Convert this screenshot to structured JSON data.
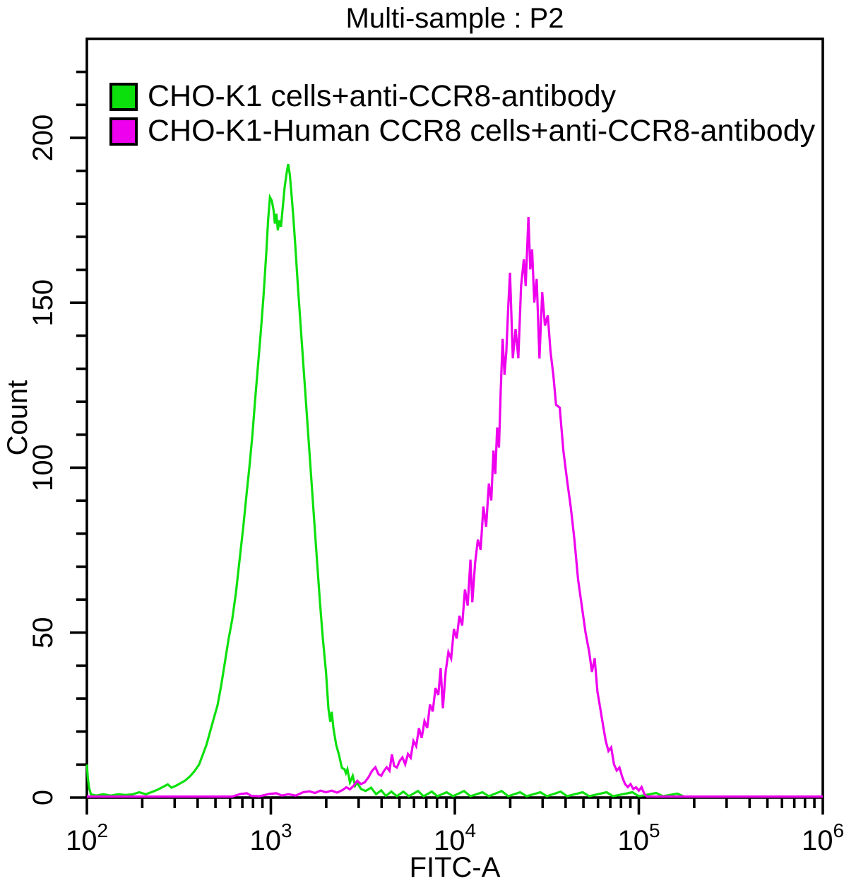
{
  "title": "Multi-sample : P2",
  "legend": {
    "items": [
      {
        "label": "CHO-K1 cells+anti-CCR8-antibody",
        "color": "#0ce00c"
      },
      {
        "label": "CHO-K1-Human CCR8 cells+anti-CCR8-antibody",
        "color": "#ee00ee"
      }
    ]
  },
  "colors": {
    "axis": "#000000",
    "background": "#ffffff",
    "green_series": "#0ce00c",
    "magenta_series": "#ee00ee"
  },
  "chart_data": {
    "type": "line",
    "title": "Multi-sample : P2",
    "xlabel": "FITC-A",
    "ylabel": "Count",
    "x_scale": "log10",
    "xlim_log10": [
      2,
      6
    ],
    "ylim": [
      0,
      230
    ],
    "x_major_tick_exponents": [
      2,
      3,
      4,
      5,
      6
    ],
    "x_tick_base_label": "10",
    "y_major_ticks": [
      0,
      50,
      100,
      150,
      200
    ],
    "y_tick_labels": [
      "0",
      "50",
      "100",
      "150",
      "200"
    ],
    "y_minor_tick_step": 10,
    "grid": false,
    "legend_position": "top-left",
    "series": [
      {
        "name": "CHO-K1 cells+anti-CCR8-antibody",
        "color": "#0ce00c",
        "peak": {
          "x_log10": 3.094,
          "count": 192
        },
        "points_log10x_count": [
          [
            2.0,
            10
          ],
          [
            2.005,
            6
          ],
          [
            2.012,
            3
          ],
          [
            2.022,
            1
          ],
          [
            2.05,
            0.6
          ],
          [
            2.09,
            1
          ],
          [
            2.13,
            0.6
          ],
          [
            2.17,
            1
          ],
          [
            2.21,
            0.8
          ],
          [
            2.25,
            1
          ],
          [
            2.285,
            1.6
          ],
          [
            2.32,
            1
          ],
          [
            2.35,
            1.6
          ],
          [
            2.385,
            2.4
          ],
          [
            2.42,
            3.4
          ],
          [
            2.44,
            4
          ],
          [
            2.46,
            3
          ],
          [
            2.485,
            3.6
          ],
          [
            2.51,
            4.4
          ],
          [
            2.535,
            5.2
          ],
          [
            2.56,
            6.4
          ],
          [
            2.585,
            8
          ],
          [
            2.61,
            10
          ],
          [
            2.63,
            13
          ],
          [
            2.65,
            16
          ],
          [
            2.67,
            20
          ],
          [
            2.69,
            24
          ],
          [
            2.71,
            28
          ],
          [
            2.73,
            34
          ],
          [
            2.75,
            41
          ],
          [
            2.77,
            48
          ],
          [
            2.79,
            54
          ],
          [
            2.81,
            62
          ],
          [
            2.83,
            72
          ],
          [
            2.85,
            82
          ],
          [
            2.87,
            93
          ],
          [
            2.885,
            101
          ],
          [
            2.9,
            110
          ],
          [
            2.915,
            121
          ],
          [
            2.93,
            131
          ],
          [
            2.945,
            141
          ],
          [
            2.96,
            152
          ],
          [
            2.975,
            165
          ],
          [
            2.985,
            175
          ],
          [
            2.995,
            182
          ],
          [
            3.005,
            181
          ],
          [
            3.015,
            178
          ],
          [
            3.022,
            174
          ],
          [
            3.03,
            177
          ],
          [
            3.038,
            172
          ],
          [
            3.046,
            175
          ],
          [
            3.055,
            173
          ],
          [
            3.065,
            179
          ],
          [
            3.075,
            185
          ],
          [
            3.085,
            189
          ],
          [
            3.094,
            192
          ],
          [
            3.103,
            189
          ],
          [
            3.112,
            183
          ],
          [
            3.122,
            176
          ],
          [
            3.132,
            168
          ],
          [
            3.147,
            155
          ],
          [
            3.162,
            143
          ],
          [
            3.177,
            131
          ],
          [
            3.192,
            119
          ],
          [
            3.207,
            107
          ],
          [
            3.222,
            95
          ],
          [
            3.237,
            83
          ],
          [
            3.252,
            71
          ],
          [
            3.267,
            59
          ],
          [
            3.283,
            48
          ],
          [
            3.3,
            38
          ],
          [
            3.313,
            27
          ],
          [
            3.323,
            23
          ],
          [
            3.331,
            26
          ],
          [
            3.34,
            21
          ],
          [
            3.355,
            16
          ],
          [
            3.37,
            13
          ],
          [
            3.386,
            9
          ],
          [
            3.4,
            8.6
          ],
          [
            3.408,
            7.4
          ],
          [
            3.416,
            8.6
          ],
          [
            3.43,
            4.6
          ],
          [
            3.445,
            6.6
          ],
          [
            3.458,
            3.6
          ],
          [
            3.468,
            4.6
          ],
          [
            3.49,
            2.6
          ],
          [
            3.515,
            2
          ],
          [
            3.545,
            3
          ],
          [
            3.572,
            1
          ],
          [
            3.6,
            2.2
          ],
          [
            3.625,
            0.5
          ],
          [
            3.655,
            1.8
          ],
          [
            3.685,
            0.4
          ],
          [
            3.72,
            1.8
          ],
          [
            3.75,
            0.4
          ],
          [
            3.8,
            2
          ],
          [
            3.83,
            0.4
          ],
          [
            3.875,
            1.8
          ],
          [
            3.905,
            0.4
          ],
          [
            3.955,
            1.6
          ],
          [
            3.99,
            0.4
          ],
          [
            4.05,
            2
          ],
          [
            4.085,
            0.4
          ],
          [
            4.15,
            1.6
          ],
          [
            4.185,
            0.4
          ],
          [
            4.255,
            2
          ],
          [
            4.29,
            0.4
          ],
          [
            4.355,
            1.6
          ],
          [
            4.39,
            0.4
          ],
          [
            4.465,
            1.6
          ],
          [
            4.5,
            0.4
          ],
          [
            4.575,
            1.8
          ],
          [
            4.61,
            0.4
          ],
          [
            4.695,
            1.6
          ],
          [
            4.73,
            0.4
          ],
          [
            4.825,
            1.6
          ],
          [
            4.86,
            0.4
          ],
          [
            4.965,
            1.6
          ],
          [
            5.0,
            0.4
          ],
          [
            5.095,
            1.4
          ],
          [
            5.13,
            0.4
          ],
          [
            5.21,
            1.2
          ],
          [
            5.245,
            0.3
          ],
          [
            5.35,
            0.3
          ],
          [
            5.5,
            0.3
          ],
          [
            5.7,
            0.3
          ],
          [
            6.0,
            0.3
          ]
        ]
      },
      {
        "name": "CHO-K1-Human CCR8 cells+anti-CCR8-antibody",
        "color": "#ee00ee",
        "peak": {
          "x_log10": 4.4,
          "count": 176
        },
        "points_log10x_count": [
          [
            2.0,
            0.3
          ],
          [
            2.55,
            0.3
          ],
          [
            2.79,
            0.3
          ],
          [
            2.835,
            1.1
          ],
          [
            2.87,
            1.3
          ],
          [
            2.895,
            0.5
          ],
          [
            2.94,
            0.4
          ],
          [
            2.99,
            1.1
          ],
          [
            3.03,
            1.3
          ],
          [
            3.06,
            0.6
          ],
          [
            3.095,
            1
          ],
          [
            3.135,
            0.6
          ],
          [
            3.175,
            1.6
          ],
          [
            3.21,
            1.9
          ],
          [
            3.24,
            1.4
          ],
          [
            3.27,
            2.1
          ],
          [
            3.3,
            1.6
          ],
          [
            3.33,
            2.1
          ],
          [
            3.36,
            1.5
          ],
          [
            3.39,
            2.3
          ],
          [
            3.41,
            3.1
          ],
          [
            3.43,
            2.5
          ],
          [
            3.45,
            3.6
          ],
          [
            3.47,
            5.1
          ],
          [
            3.49,
            4.1
          ],
          [
            3.51,
            4.6
          ],
          [
            3.53,
            6.1
          ],
          [
            3.55,
            8.1
          ],
          [
            3.568,
            9.2
          ],
          [
            3.585,
            7.1
          ],
          [
            3.6,
            6.6
          ],
          [
            3.615,
            8.1
          ],
          [
            3.63,
            9.2
          ],
          [
            3.645,
            8.1
          ],
          [
            3.658,
            13.1
          ],
          [
            3.67,
            9.6
          ],
          [
            3.685,
            9.1
          ],
          [
            3.7,
            11.1
          ],
          [
            3.715,
            12.2
          ],
          [
            3.73,
            10.1
          ],
          [
            3.745,
            13.2
          ],
          [
            3.76,
            12.1
          ],
          [
            3.775,
            17.2
          ],
          [
            3.79,
            15.6
          ],
          [
            3.805,
            21
          ],
          [
            3.82,
            18.1
          ],
          [
            3.835,
            23.2
          ],
          [
            3.85,
            21.1
          ],
          [
            3.865,
            28.2
          ],
          [
            3.88,
            26.1
          ],
          [
            3.895,
            33.2
          ],
          [
            3.91,
            31.1
          ],
          [
            3.923,
            39.2
          ],
          [
            3.935,
            27.1
          ],
          [
            3.95,
            38.2
          ],
          [
            3.965,
            44.1
          ],
          [
            3.98,
            42.2
          ],
          [
            3.995,
            51.1
          ],
          [
            4.01,
            48.2
          ],
          [
            4.025,
            55.1
          ],
          [
            4.04,
            52.2
          ],
          [
            4.055,
            63.1
          ],
          [
            4.07,
            58.2
          ],
          [
            4.085,
            72.1
          ],
          [
            4.095,
            59.2
          ],
          [
            4.11,
            71.1
          ],
          [
            4.125,
            78.2
          ],
          [
            4.14,
            75.1
          ],
          [
            4.155,
            88.2
          ],
          [
            4.17,
            82.1
          ],
          [
            4.185,
            95.2
          ],
          [
            4.198,
            90.1
          ],
          [
            4.21,
            105.2
          ],
          [
            4.22,
            98.1
          ],
          [
            4.23,
            112.2
          ],
          [
            4.24,
            106.1
          ],
          [
            4.25,
            124.2
          ],
          [
            4.26,
            139.1
          ],
          [
            4.27,
            128.2
          ],
          [
            4.28,
            135.1
          ],
          [
            4.29,
            148.2
          ],
          [
            4.3,
            159.1
          ],
          [
            4.315,
            133.2
          ],
          [
            4.33,
            142.1
          ],
          [
            4.345,
            133.2
          ],
          [
            4.36,
            155.1
          ],
          [
            4.375,
            163.2
          ],
          [
            4.385,
            155.1
          ],
          [
            4.4,
            176
          ],
          [
            4.41,
            160.1
          ],
          [
            4.42,
            166.2
          ],
          [
            4.432,
            150.1
          ],
          [
            4.445,
            157.2
          ],
          [
            4.46,
            133.1
          ],
          [
            4.475,
            153.2
          ],
          [
            4.49,
            143.1
          ],
          [
            4.505,
            146.2
          ],
          [
            4.52,
            135.1
          ],
          [
            4.535,
            128.2
          ],
          [
            4.55,
            119.1
          ],
          [
            4.57,
            118.2
          ],
          [
            4.59,
            105.1
          ],
          [
            4.61,
            96.2
          ],
          [
            4.63,
            88.1
          ],
          [
            4.65,
            78.2
          ],
          [
            4.67,
            66.1
          ],
          [
            4.69,
            58.2
          ],
          [
            4.71,
            50.1
          ],
          [
            4.73,
            44.2
          ],
          [
            4.745,
            38.1
          ],
          [
            4.76,
            42.2
          ],
          [
            4.775,
            32.1
          ],
          [
            4.79,
            27.2
          ],
          [
            4.805,
            22.1
          ],
          [
            4.82,
            17.2
          ],
          [
            4.835,
            14.1
          ],
          [
            4.85,
            15.2
          ],
          [
            4.865,
            10.1
          ],
          [
            4.88,
            8.2
          ],
          [
            4.895,
            9.1
          ],
          [
            4.91,
            6.2
          ],
          [
            4.925,
            4.1
          ],
          [
            4.94,
            3.2
          ],
          [
            4.955,
            4.1
          ],
          [
            4.97,
            2.6
          ],
          [
            4.985,
            3.1
          ],
          [
            5.0,
            2.1
          ],
          [
            5.015,
            3.2
          ],
          [
            5.03,
            1.1
          ],
          [
            5.045,
            0.3
          ],
          [
            5.1,
            0.3
          ],
          [
            5.3,
            0.3
          ],
          [
            5.6,
            0.3
          ],
          [
            6.0,
            0.3
          ]
        ]
      }
    ]
  }
}
